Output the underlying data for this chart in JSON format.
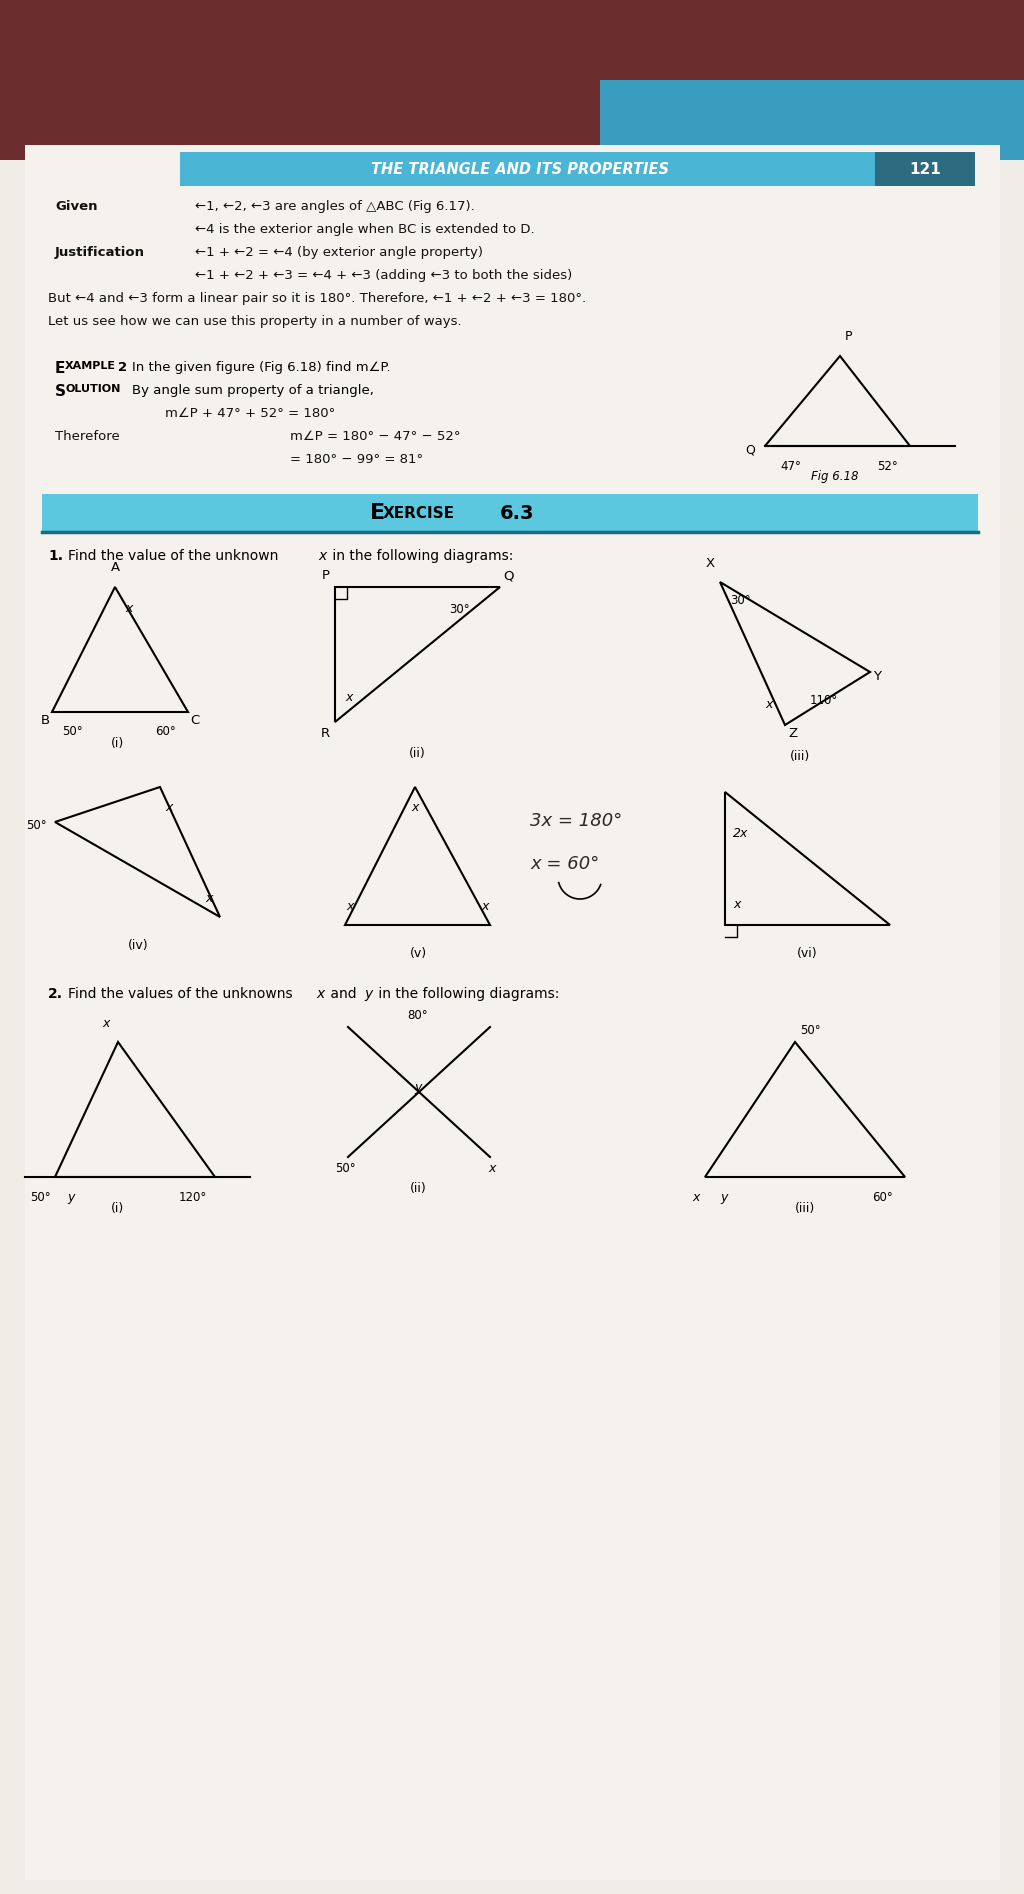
{
  "page_bg": "#f0ede6",
  "top_bg": "#6b2d2d",
  "blue_strip": "#3a9dbf",
  "header_bar_color": "#4ab5d4",
  "header_num_bg": "#2d6b80",
  "exercise_bg": "#5bc8e0",
  "exercise_border": "#1a6a80",
  "header_text": "THE TRIANGLE AND ITS PROPERTIES",
  "header_num": "121",
  "exercise_title": "EXERCISE 6.3",
  "given_label": "Given",
  "justification_label": "Justification",
  "given_line1": "←1, ←2, ←3 are angles of △ABC (Fig 6.17).",
  "given_line2": "←4 is the exterior angle when BC is extended to D.",
  "just_line1": "←1 + ←2 = ←4 (by exterior angle property)",
  "just_line2": "←1 + ←2 + ←3 = ←4 + ←3 (adding ←3 to both the sides)",
  "but_line": "But ←4 and ←3 form a linear pair so it is 180°. Therefore, ←1 + ←2 + ←3 = 180°.",
  "let_line": "Let us see how we can use this property in a number of ways.",
  "ex2_intro": "In the given figure (Fig 6.18) find m∠P.",
  "sol_line1": "By angle sum property of a triangle,",
  "sol_line2": "m∠P + 47° + 52° = 180°",
  "therefore_label": "Therefore",
  "sol_line3": "m∠P = 180° − 47° − 52°",
  "sol_line4": "= 180° − 99° = 81°",
  "fig618_label": "Fig 6.18"
}
